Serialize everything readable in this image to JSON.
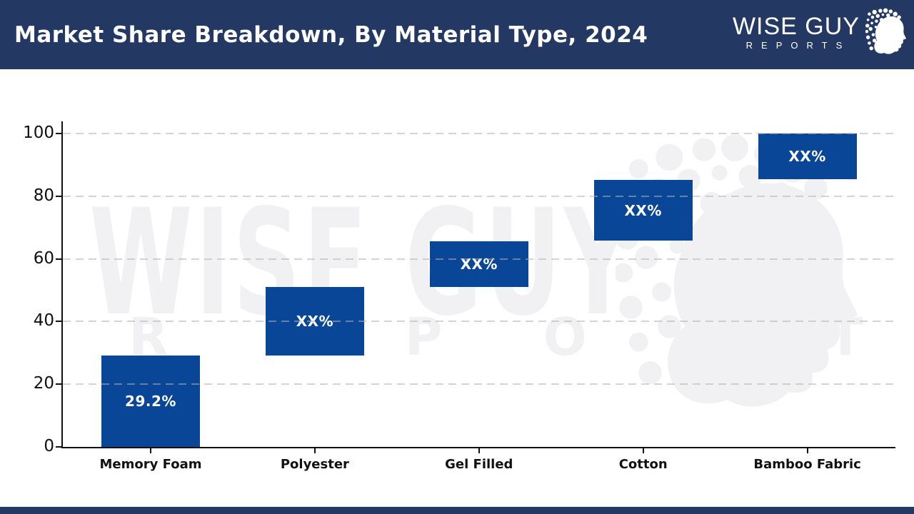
{
  "header": {
    "title": "Market Share Breakdown, By Material Type, 2024",
    "bg_color": "#233862",
    "logo": {
      "line1": "WISE GUY",
      "line2": "REPORTS"
    }
  },
  "watermark": {
    "line1": "WISE GUY",
    "line2": "R E P O R T S"
  },
  "footer": {
    "bg_color": "#233862"
  },
  "chart_data": {
    "type": "bar",
    "subtype": "waterfall",
    "title": "Market Share Breakdown, By Material Type, 2024",
    "categories": [
      "Memory Foam",
      "Polyester",
      "Gel Filled",
      "Cotton",
      "Bamboo Fabric"
    ],
    "bars": [
      {
        "category": "Memory Foam",
        "start": 0,
        "end": 29.2,
        "label": "29.2%"
      },
      {
        "category": "Polyester",
        "start": 29.2,
        "end": 51.1,
        "label": "XX%"
      },
      {
        "category": "Gel Filled",
        "start": 51.1,
        "end": 65.7,
        "label": "XX%"
      },
      {
        "category": "Cotton",
        "start": 65.8,
        "end": 85.2,
        "label": "XX%"
      },
      {
        "category": "Bamboo Fabric",
        "start": 85.5,
        "end": 100,
        "label": "XX%"
      }
    ],
    "yticks": [
      0,
      20,
      40,
      60,
      80,
      100
    ],
    "ylim": [
      0,
      104
    ],
    "xlabel": "",
    "ylabel": "",
    "bar_color": "#0a4697",
    "grid": "horizontal-dashed",
    "grid_over_bars": true,
    "legend": null
  }
}
